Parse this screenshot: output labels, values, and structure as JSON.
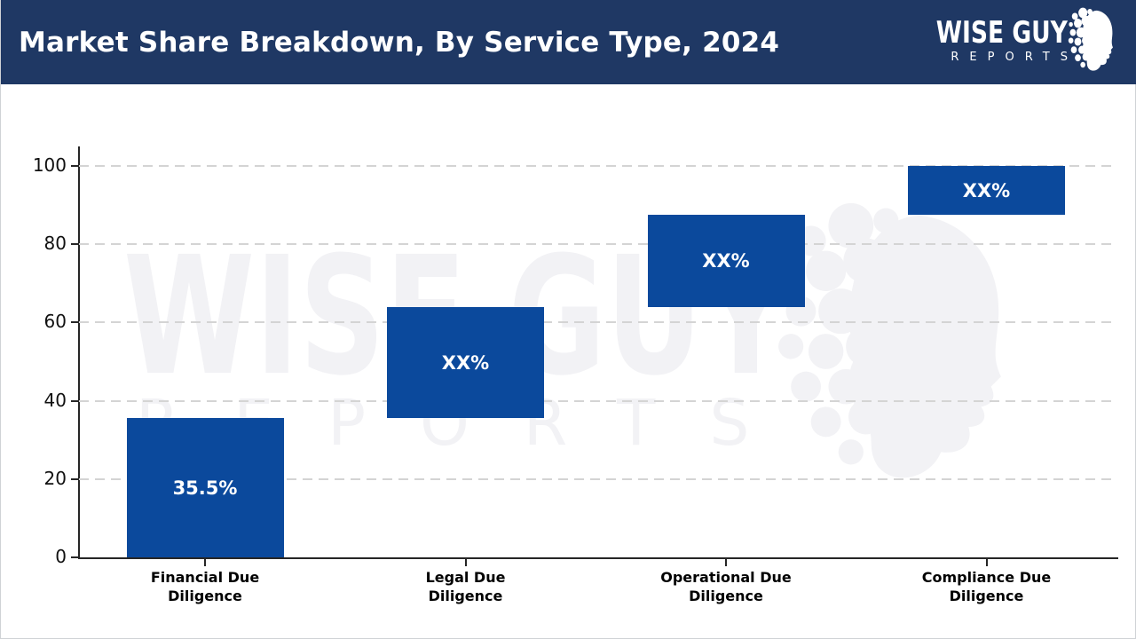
{
  "header": {
    "title": "Market Share Breakdown, By Service Type, 2024",
    "bg_color": "#1f3864",
    "logo": {
      "line1": "WISE GUY",
      "line2": "REPORTS"
    }
  },
  "watermark": {
    "line1": "WISE GUY",
    "line2": "REPORTS"
  },
  "colors": {
    "header_bg": "#1f3864",
    "bar": "#0b499c",
    "grid": "#d4d4d4",
    "axis": "#262626",
    "bar_label": "#ffffff",
    "watermark": "#f2f2f5"
  },
  "chart_data": {
    "type": "bar",
    "subtype": "waterfall-floating-bars",
    "title": "Market Share Breakdown, By Service Type, 2024",
    "categories": [
      "Financial Due Diligence",
      "Legal Due Diligence",
      "Operational Due Diligence",
      "Compliance Due Diligence"
    ],
    "categories_wrapped": [
      [
        "Financial Due",
        "Diligence"
      ],
      [
        "Legal Due",
        "Diligence"
      ],
      [
        "Operational Due",
        "Diligence"
      ],
      [
        "Compliance Due",
        "Diligence"
      ]
    ],
    "segments": [
      {
        "start": 0,
        "end": 35.5,
        "value": 35.5,
        "label": "35.5%"
      },
      {
        "start": 35.5,
        "end": 64,
        "value": 28.5,
        "label": "XX%"
      },
      {
        "start": 64,
        "end": 87.5,
        "value": 23.5,
        "label": "XX%"
      },
      {
        "start": 87.5,
        "end": 100,
        "value": 12.5,
        "label": "XX%"
      }
    ],
    "ylim": [
      0,
      100
    ],
    "yticks": [
      0,
      20,
      40,
      60,
      80,
      100
    ],
    "xlabel": "",
    "ylabel": "",
    "grid": "horizontal-dashed",
    "legend": "none",
    "bar_color": "#0b499c"
  }
}
